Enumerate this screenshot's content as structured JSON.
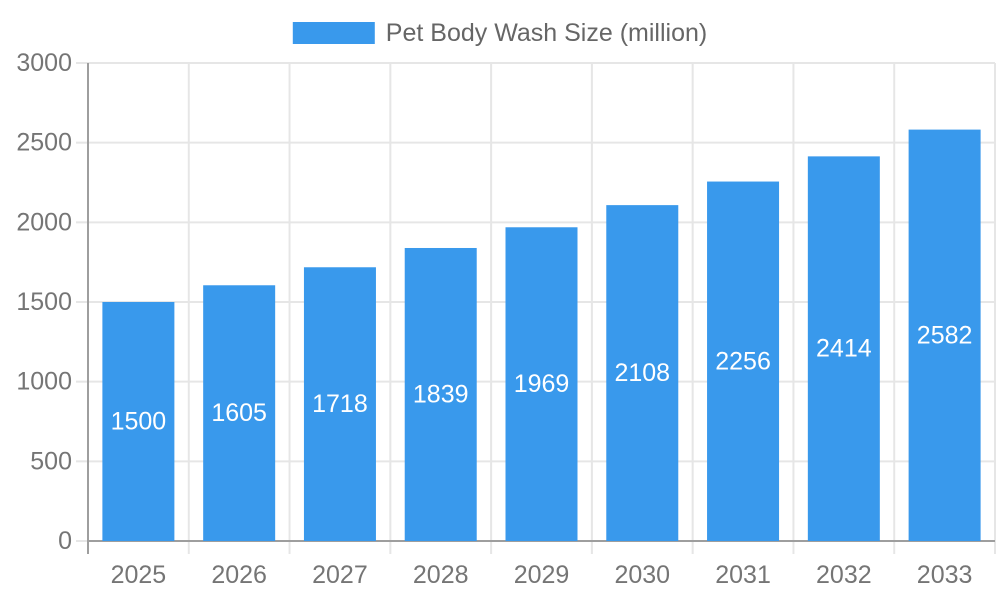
{
  "chart_data": {
    "type": "bar",
    "title": "Pet Body Wash Size (million)",
    "categories": [
      "2025",
      "2026",
      "2027",
      "2028",
      "2029",
      "2030",
      "2031",
      "2032",
      "2033"
    ],
    "series": [
      {
        "name": "Pet Body Wash Size (million)",
        "values": [
          1500,
          1605,
          1718,
          1839,
          1969,
          2108,
          2256,
          2414,
          2582
        ]
      }
    ],
    "xlabel": "",
    "ylabel": "",
    "ylim": [
      0,
      3000
    ],
    "yticks": [
      0,
      500,
      1000,
      1500,
      2000,
      2500,
      3000
    ],
    "grid": true,
    "legend_position": "top",
    "value_labels": "inside-bar-centered",
    "colors": {
      "bar": "#3999EC",
      "grid": "#E6E6E6",
      "axis_border": "#9E9E9E",
      "axis_tick_text": "#757575",
      "legend_text": "#666666",
      "value_label_text": "#FFFFFF",
      "background": "#FFFFFF"
    }
  }
}
